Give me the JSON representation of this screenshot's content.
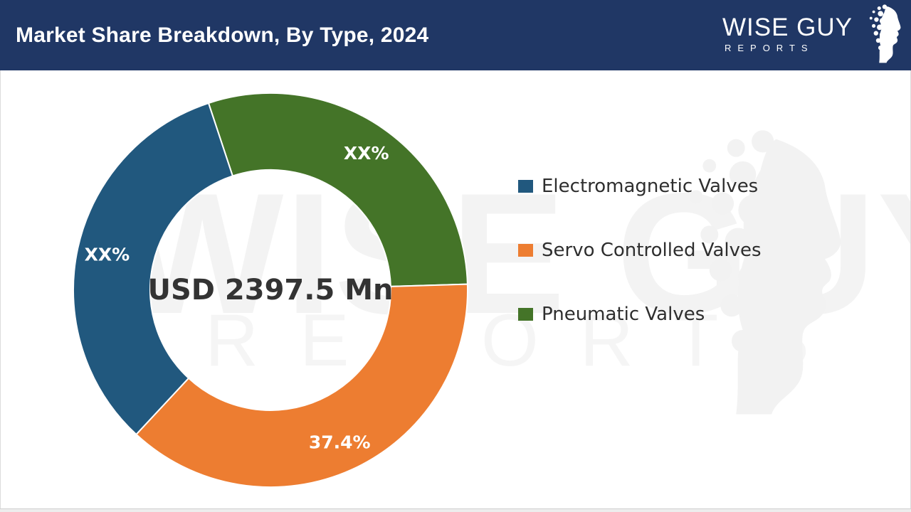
{
  "header": {
    "title": "Market Share Breakdown, By Type, 2024",
    "bg_color": "#203765",
    "logo": {
      "line1": "WISE GUY",
      "line2": "REPORTS"
    }
  },
  "watermark": {
    "line1": "WISE GUY",
    "line2": "REPORTS"
  },
  "chart_data": {
    "type": "pie",
    "subtype": "donut",
    "title": "Market Share Breakdown, By Type, 2024",
    "center_label": "USD 2397.5 Mn",
    "start_angle_deg": 108.3,
    "direction": "clockwise",
    "inner_radius_ratio": 0.61,
    "legend_position": "right",
    "slices": [
      {
        "label": "Pneumatic Valves",
        "display_label": "XX%",
        "value_pct": 29.6,
        "color": "#447428"
      },
      {
        "label": "Servo Controlled Valves",
        "display_label": "37.4%",
        "value_pct": 37.4,
        "color": "#ED7D31"
      },
      {
        "label": "Electromagnetic Valves",
        "display_label": "XX%",
        "value_pct": 33.0,
        "color": "#21587E"
      }
    ],
    "legend": [
      {
        "label": "Electromagnetic Valves",
        "color": "#21587E"
      },
      {
        "label": "Servo Controlled Valves",
        "color": "#ED7D31"
      },
      {
        "label": "Pneumatic Valves",
        "color": "#447428"
      }
    ]
  },
  "colors": {
    "header_bg": "#203765",
    "center_text": "#333333",
    "legend_text": "#2e2e2e",
    "watermark": "#f3f3f3",
    "slice_gap": "#ffffff"
  }
}
